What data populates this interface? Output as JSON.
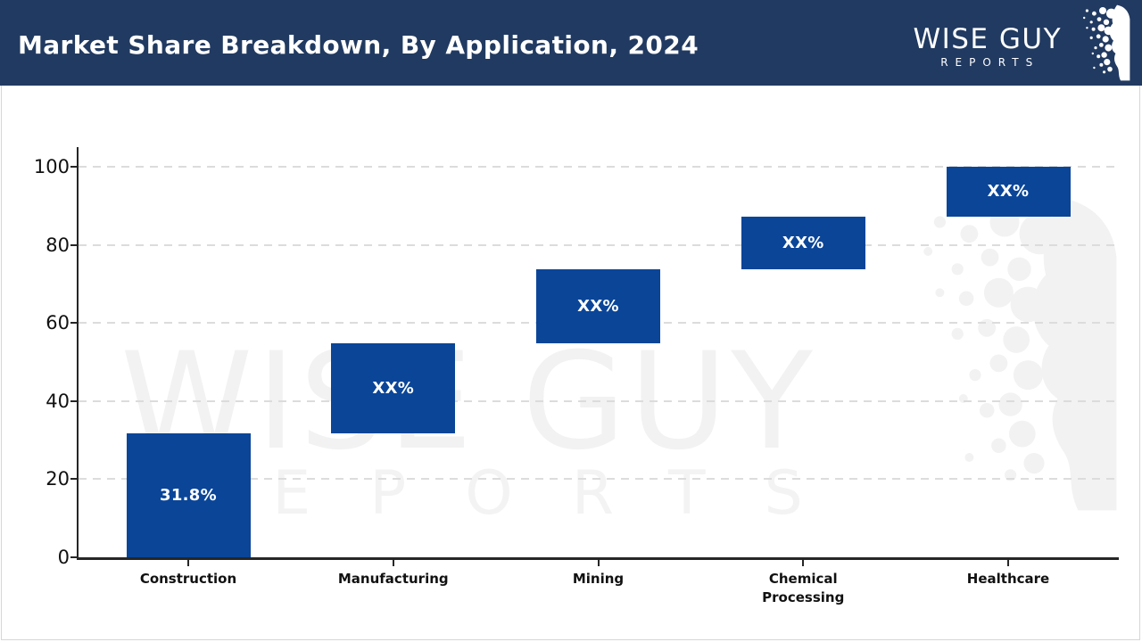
{
  "page": {
    "background": "#ffffff",
    "frame_color": "#d6d6d6"
  },
  "header": {
    "background": "#213a61",
    "title": "Market Share Breakdown, By Application, 2024",
    "logo": {
      "wordmark": "WISE GUY",
      "sub": "REPORTS",
      "head_icon": "dotted-head-profile",
      "color": "#ffffff"
    }
  },
  "watermark": {
    "wordmark": "WISE GUY",
    "sub": "REPORTS",
    "head_icon": "dotted-head-profile",
    "color": "#f2f2f2"
  },
  "chart_data": {
    "type": "bar",
    "subtype": "floating-waterfall",
    "title": "Market Share Breakdown, By Application, 2024",
    "categories": [
      "Construction",
      "Manufacturing",
      "Mining",
      "Chemical Processing",
      "Healthcare"
    ],
    "bars": [
      {
        "category": "Construction",
        "start": 0,
        "end": 31.8,
        "label": "31.8%"
      },
      {
        "category": "Manufacturing",
        "start": 31.8,
        "end": 54.8,
        "label": "XX%"
      },
      {
        "category": "Mining",
        "start": 54.8,
        "end": 73.8,
        "label": "XX%"
      },
      {
        "category": "Chemical Processing",
        "start": 73.8,
        "end": 87.3,
        "label": "XX%"
      },
      {
        "category": "Healthcare",
        "start": 87.3,
        "end": 100,
        "label": "XX%"
      }
    ],
    "yticks": [
      0,
      20,
      40,
      60,
      80,
      100
    ],
    "ylim": [
      0,
      105
    ],
    "xlabel": "",
    "ylabel": "",
    "grid": "horizontal-dashed",
    "gridline_color": "#dcdcdc",
    "bar_color": "#0a4598",
    "bar_label_color": "#ffffff",
    "axis_color": "#262626",
    "tick_label_color": "#111111",
    "legend": "none"
  }
}
